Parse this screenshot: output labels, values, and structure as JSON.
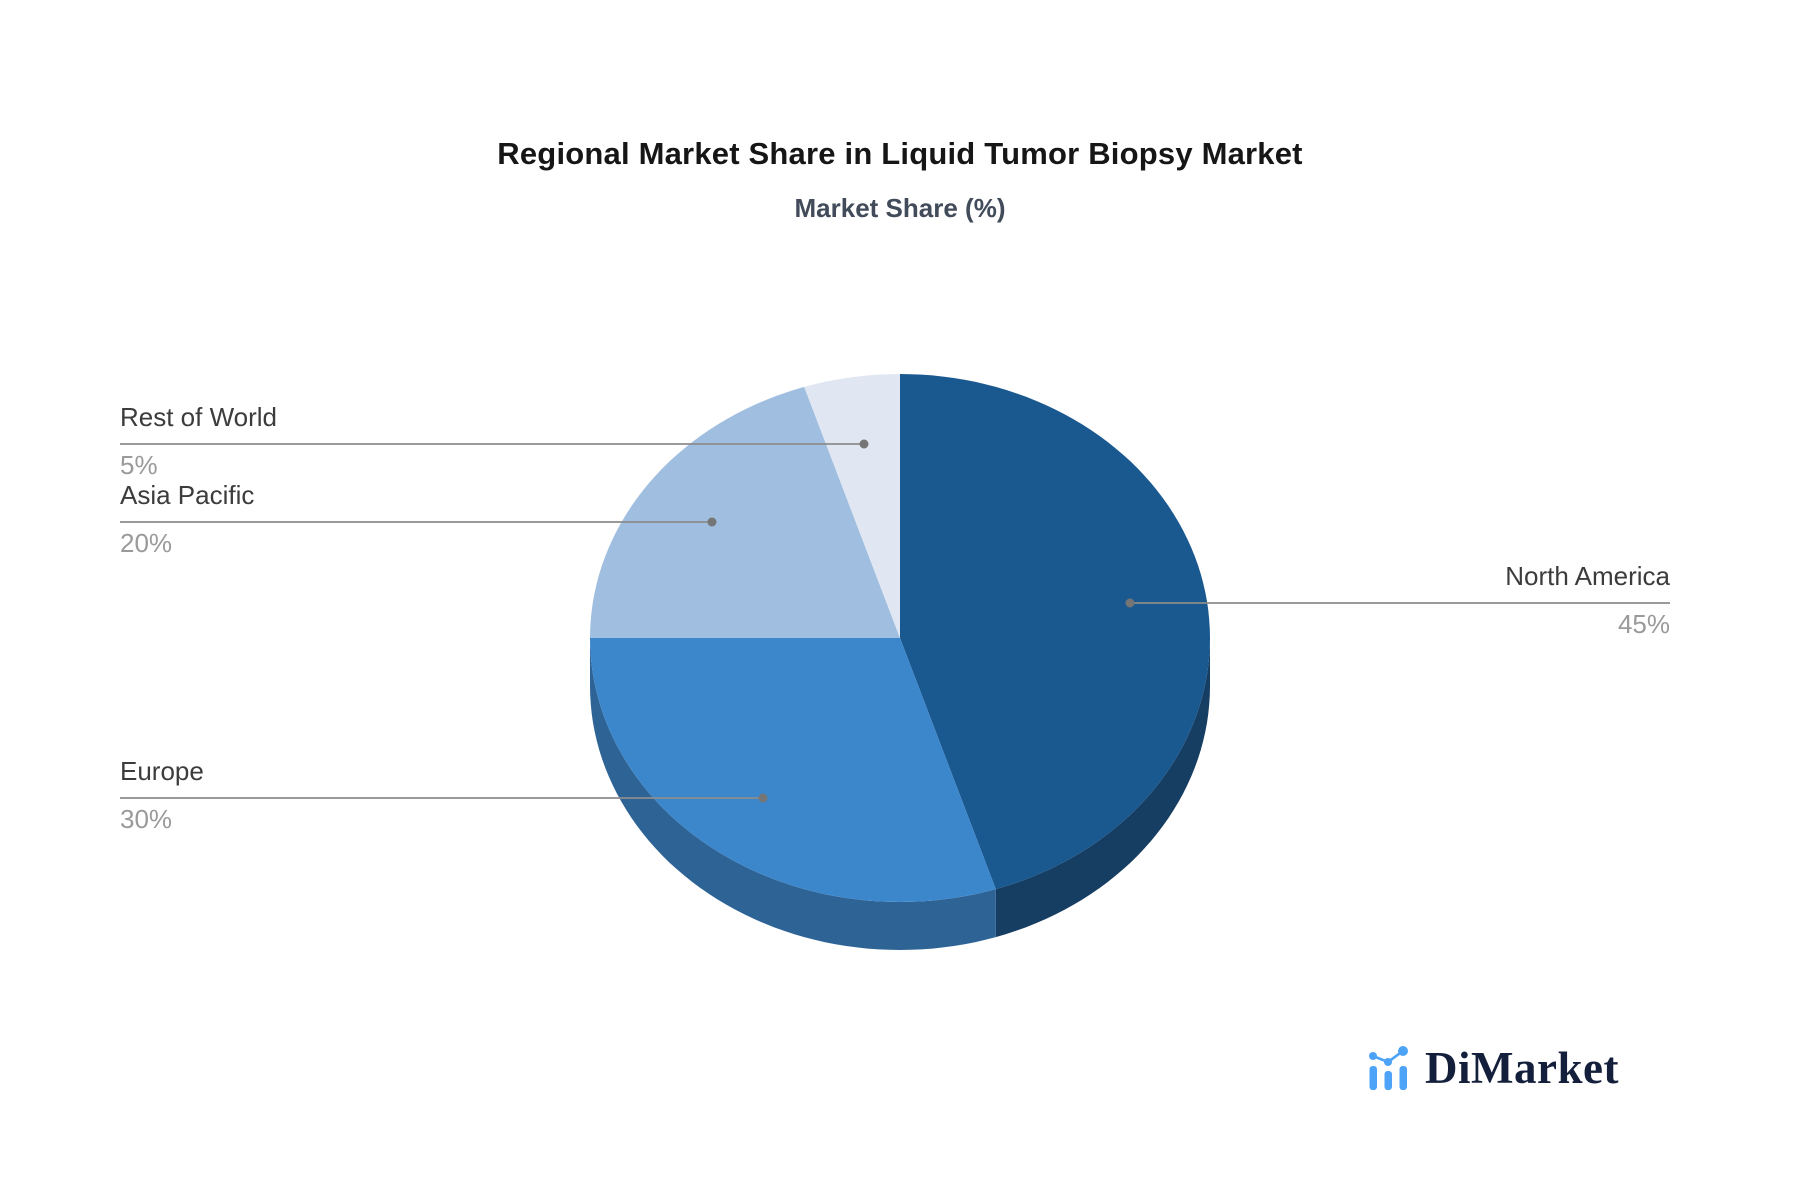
{
  "header": {
    "title": "Regional Market Share in Liquid Tumor Biopsy Market",
    "subtitle": "Market Share (%)"
  },
  "chart_data": {
    "type": "pie",
    "style": "3d",
    "unit": "%",
    "start_angle_deg_from_top": 0,
    "direction": "clockwise",
    "title": "Regional Market Share in Liquid Tumor Biopsy Market",
    "subtitle": "Market Share (%)",
    "legend": "none (leader-line labels)",
    "slices": [
      {
        "label": "North America",
        "value": 45,
        "pct_label": "45%",
        "color": "#1A5890",
        "side_color": "#163D62"
      },
      {
        "label": "Europe",
        "value": 30,
        "pct_label": "30%",
        "color": "#3C87CB",
        "side_color": "#2E6396"
      },
      {
        "label": "Asia Pacific",
        "value": 20,
        "pct_label": "20%",
        "color": "#A0BFE0",
        "side_color": "#8FADCF"
      },
      {
        "label": "Rest of World",
        "value": 5,
        "pct_label": "5%",
        "color": "#E1E7F2",
        "side_color": "#C9D2E3"
      }
    ],
    "label_style": {
      "name_color": "#3C3C3C",
      "pct_color": "#9A9A9A",
      "line_color": "#8C8C8C",
      "dot_color": "#757575"
    }
  },
  "branding": {
    "logo_text": "DiMarket",
    "logo_icon": "bar-chart-icon",
    "icon_color": "#4DA3F7",
    "text_color": "#141F3C"
  }
}
